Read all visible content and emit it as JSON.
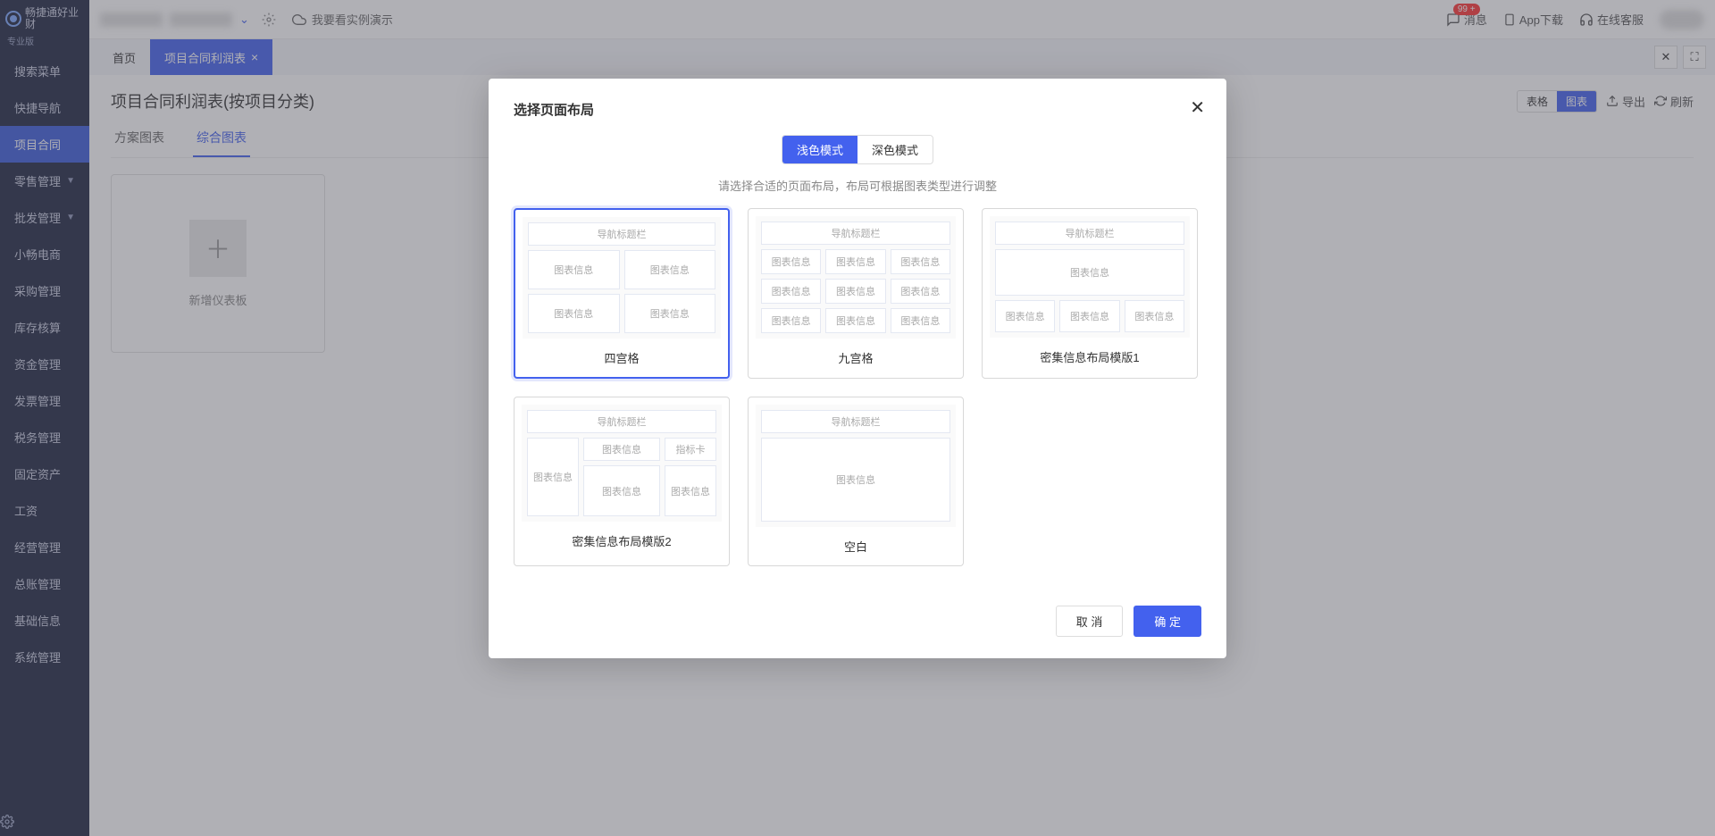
{
  "brand": {
    "name": "畅捷通好业财",
    "edition": "专业版"
  },
  "topbar": {
    "demo_link": "我要看实例演示",
    "msg": "消息",
    "msg_badge": "99 +",
    "app": "App下载",
    "support": "在线客服"
  },
  "sidebar": {
    "items": [
      {
        "label": "搜索菜单",
        "chev": false
      },
      {
        "label": "快捷导航",
        "chev": false
      },
      {
        "label": "项目合同",
        "chev": false,
        "active": true
      },
      {
        "label": "零售管理",
        "chev": true
      },
      {
        "label": "批发管理",
        "chev": true
      },
      {
        "label": "小畅电商",
        "chev": false
      },
      {
        "label": "采购管理",
        "chev": false
      },
      {
        "label": "库存核算",
        "chev": false
      },
      {
        "label": "资金管理",
        "chev": false
      },
      {
        "label": "发票管理",
        "chev": false
      },
      {
        "label": "税务管理",
        "chev": false
      },
      {
        "label": "固定资产",
        "chev": false
      },
      {
        "label": "工资",
        "chev": false
      },
      {
        "label": "经营管理",
        "chev": false
      },
      {
        "label": "总账管理",
        "chev": false
      },
      {
        "label": "基础信息",
        "chev": false
      },
      {
        "label": "系统管理",
        "chev": false
      }
    ]
  },
  "tabs": {
    "home": "首页",
    "current": "项目合同利润表"
  },
  "page": {
    "title": "项目合同利润表(按项目分类)",
    "view_table": "表格",
    "view_chart": "图表",
    "export": "导出",
    "refresh": "刷新",
    "subtab1": "方案图表",
    "subtab2": "综合图表",
    "add_dashboard": "新增仪表板"
  },
  "dialog": {
    "title": "选择页面布局",
    "mode_light": "浅色模式",
    "mode_dark": "深色模式",
    "hint": "请选择合适的页面布局，布局可根据图表类型进行调整",
    "nav_label": "导航标题栏",
    "cell_chart": "图表信息",
    "cell_card": "指标卡",
    "layout1": "四宫格",
    "layout2": "九宫格",
    "layout3": "密集信息布局模版1",
    "layout4": "密集信息布局模版2",
    "layout5": "空白",
    "cancel": "取 消",
    "confirm": "确 定"
  },
  "colors": {
    "primary": "#4361ee",
    "sidebar_bg": "#1e2540"
  }
}
